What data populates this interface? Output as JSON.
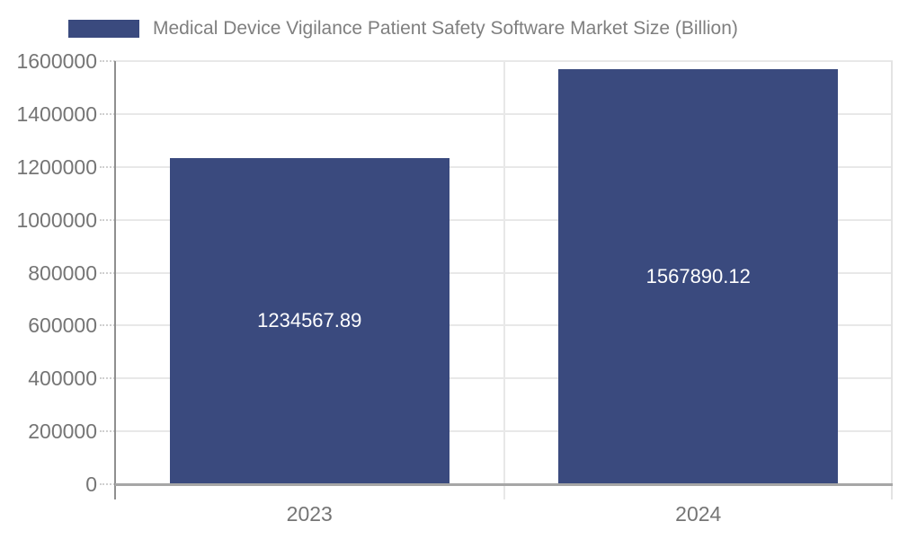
{
  "chart_data": {
    "type": "bar",
    "title": "Medical Device Vigilance Patient Safety Software Market Size (Billion)",
    "categories": [
      "2023",
      "2024"
    ],
    "values": [
      1234567.89,
      1567890.12
    ],
    "value_labels": [
      "1234567.89",
      "1567890.12"
    ],
    "xlabel": "",
    "ylabel": "",
    "ylim": [
      0,
      1600000
    ],
    "ytick_step": 200000,
    "ytick_labels": [
      "0",
      "200000",
      "400000",
      "600000",
      "800000",
      "1000000",
      "1200000",
      "1400000",
      "1600000"
    ],
    "grid": true,
    "legend_position": "top-left",
    "colors": {
      "bar": "#3A4A7E",
      "bar_label": "#ffffff",
      "grid": "#e8e8e8",
      "axis_x": "#a6a6a6",
      "axis_y": "#8f8f8f",
      "plot_right_border": "#e3e3e3",
      "tick_label": "#757575",
      "title": "#7f7f7f",
      "background": "#ffffff"
    }
  }
}
